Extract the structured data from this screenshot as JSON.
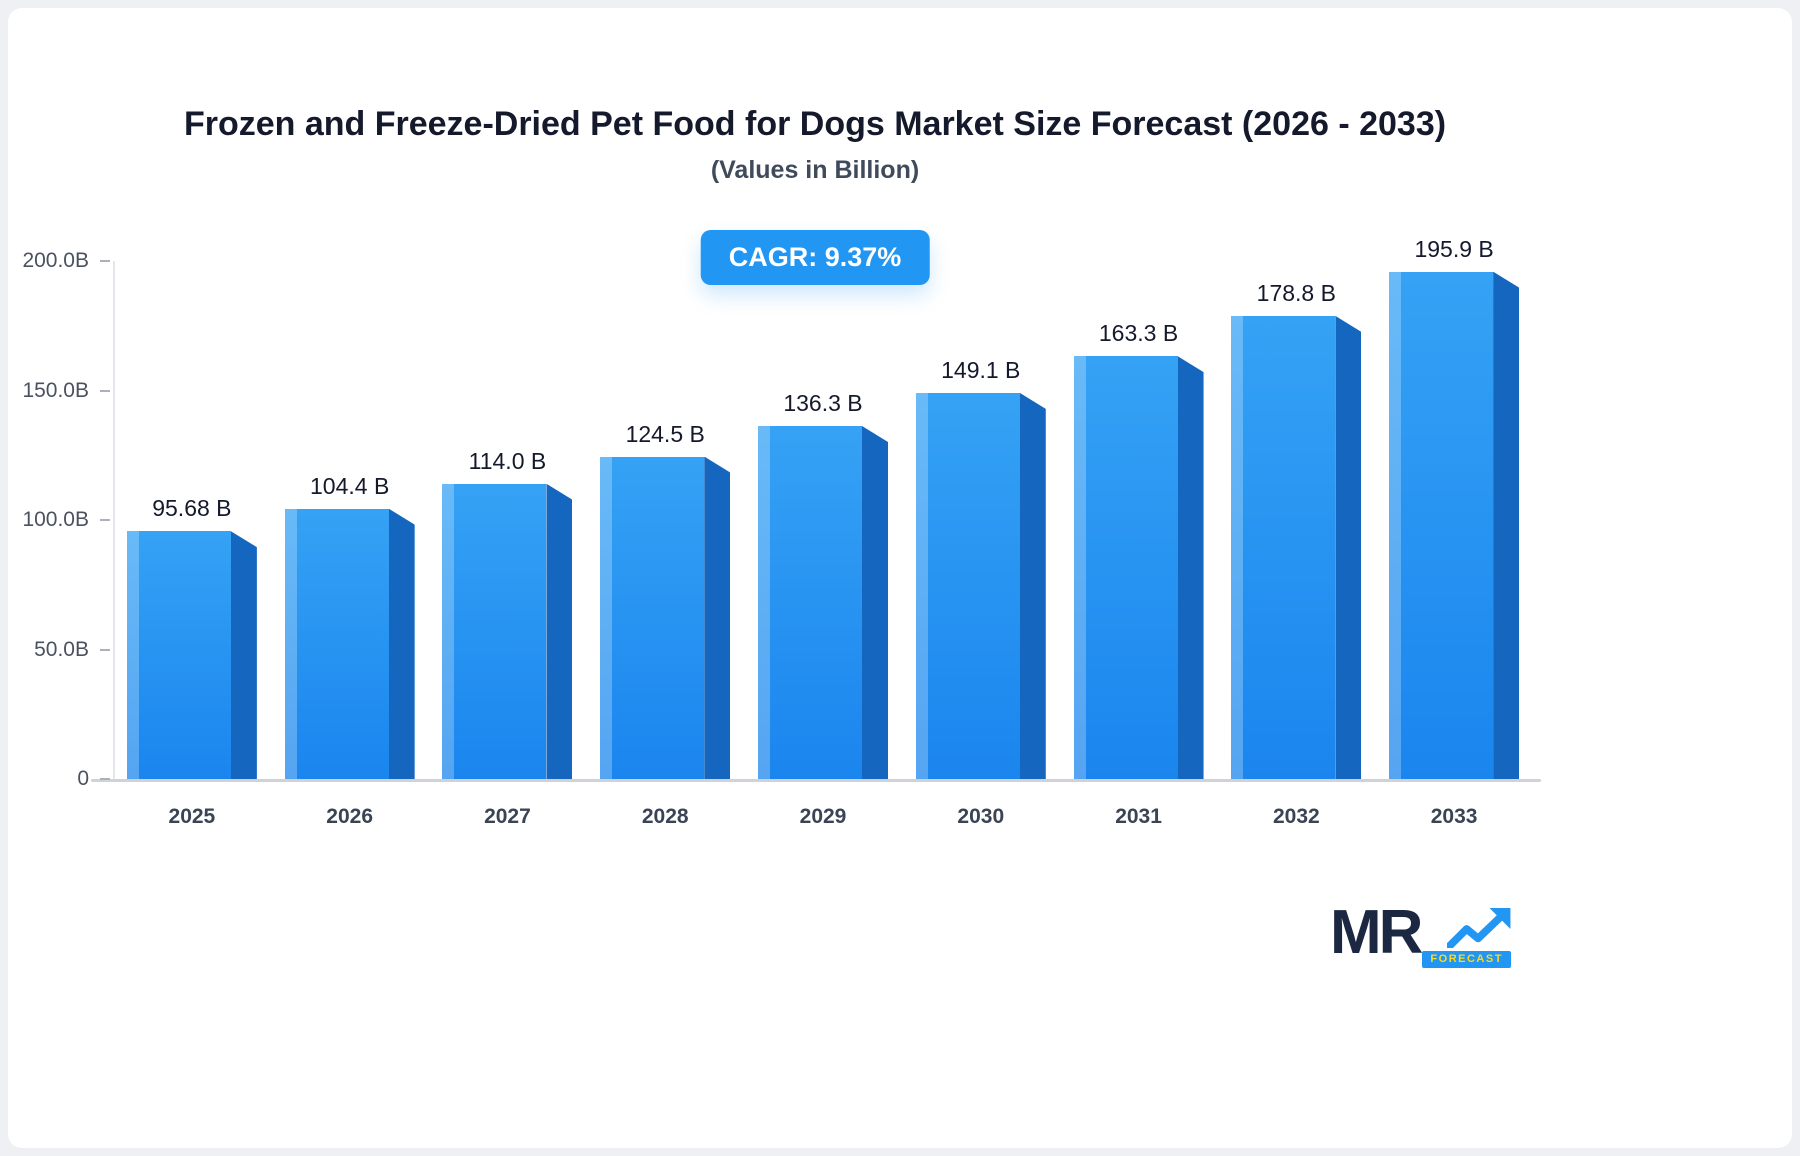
{
  "chart_data": {
    "type": "bar",
    "title": "Frozen and Freeze-Dried Pet Food for Dogs Market Size Forecast (2026 - 2033)",
    "subtitle": "(Values in Billion)",
    "cagr_label": "CAGR: 9.37%",
    "categories": [
      "2025",
      "2026",
      "2027",
      "2028",
      "2029",
      "2030",
      "2031",
      "2032",
      "2033"
    ],
    "values": [
      95.68,
      104.4,
      114.0,
      124.5,
      136.3,
      149.1,
      163.3,
      178.8,
      195.9
    ],
    "value_labels": [
      "95.68 B",
      "104.4 B",
      "114.0 B",
      "124.5 B",
      "136.3 B",
      "149.1 B",
      "163.3 B",
      "178.8 B",
      "195.9 B"
    ],
    "y_ticks": [
      "200.0B",
      "150.0B",
      "100.0B",
      "50.0B",
      "0"
    ],
    "ylim": [
      0,
      200
    ],
    "legend": "none",
    "grid": "off",
    "accent_color": "#2196f3",
    "bar_gradient_top": "#35a2f5",
    "bar_gradient_bottom": "#1a85ee",
    "bar_side_color": "#1566bf",
    "bar_highlight_color": "rgba(255,255,255,0.26)"
  },
  "logo": {
    "text": "MR",
    "badge": "FORECAST"
  }
}
